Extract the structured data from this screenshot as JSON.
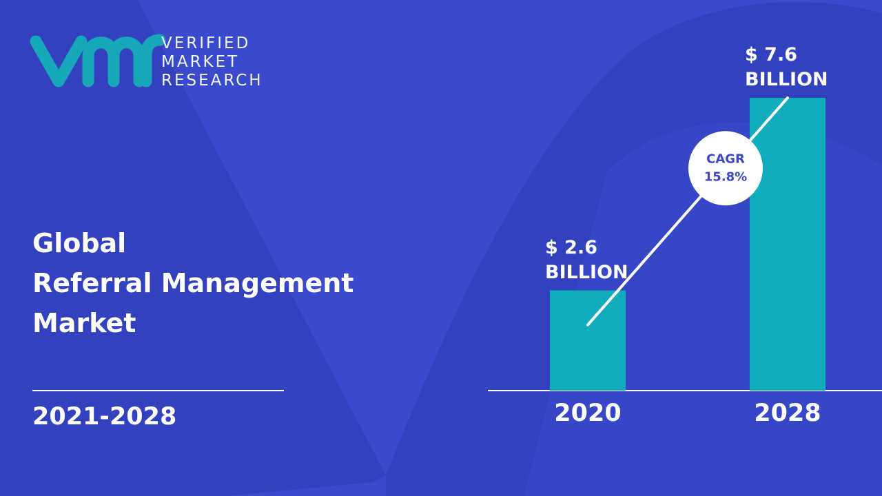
{
  "header": {
    "logo_lines": [
      "VERIFIED",
      "MARKET",
      "RESEARCH"
    ],
    "title_lines": [
      "Global",
      "Referral Management",
      "Market"
    ],
    "period": "2021-2028"
  },
  "chart_data": {
    "type": "bar",
    "categories": [
      "2020",
      "2028"
    ],
    "values": [
      2.6,
      7.6
    ],
    "value_labels": [
      "$ 2.6 BILLION",
      "$ 7.6 BILLION"
    ],
    "color": "#12adbd",
    "annotation": {
      "title": "CAGR",
      "text": "15.8%"
    }
  }
}
